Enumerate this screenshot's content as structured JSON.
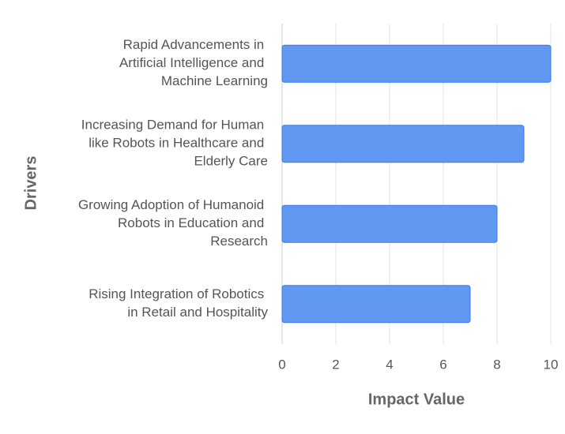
{
  "chart_data": {
    "type": "bar",
    "orientation": "horizontal",
    "x_label": "Impact Value",
    "y_label": "Drivers",
    "categories": [
      "Rapid Advancements in Artificial Intelligence and Machine Learning",
      "Increasing Demand for Human like Robots in Healthcare and Elderly Care",
      "Growing Adoption of Humanoid Robots in Education and Research",
      "Rising Integration of Robotics in Retail and Hospitality"
    ],
    "values": [
      10,
      9,
      8,
      7
    ],
    "color": "#6199f2",
    "xlim": [
      0,
      10
    ],
    "xticks": [
      0,
      2,
      4,
      6,
      8,
      10
    ],
    "grid": true
  }
}
